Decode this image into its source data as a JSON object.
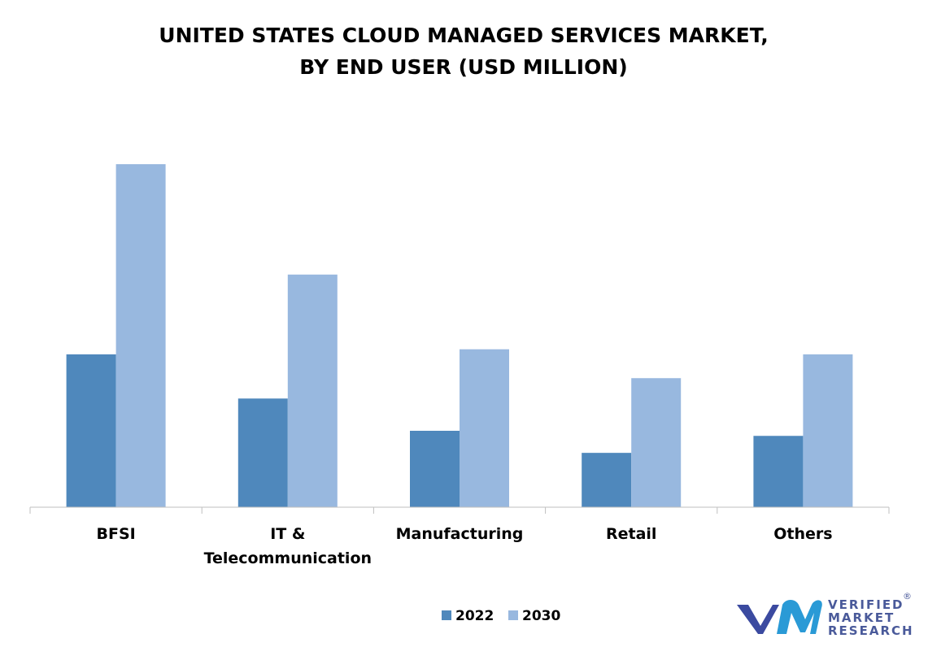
{
  "chart_data": {
    "type": "bar",
    "title_lines": [
      "UNITED STATES CLOUD MANAGED SERVICES MARKET,",
      "BY END USER (USD MILLION)"
    ],
    "categories": [
      [
        "BFSI"
      ],
      [
        "IT &",
        "Telecommunication"
      ],
      [
        "Manufacturing"
      ],
      [
        "Retail"
      ],
      [
        "Others"
      ]
    ],
    "series": [
      {
        "name": "2022",
        "color": "#4f88bc",
        "values": [
          45,
          32,
          22.5,
          16,
          21
        ]
      },
      {
        "name": "2030",
        "color": "#98b8df",
        "values": [
          101,
          68.5,
          46.5,
          38,
          45
        ]
      }
    ],
    "ylim": [
      0,
      101
    ],
    "grid": false,
    "legend_position": "bottom-center"
  },
  "logo": {
    "mark": "vmr",
    "words": [
      "VERIFIED",
      "MARKET",
      "RESEARCH"
    ],
    "registered": "®",
    "colors": [
      "#3b4aa0",
      "#2a9ad6"
    ]
  }
}
